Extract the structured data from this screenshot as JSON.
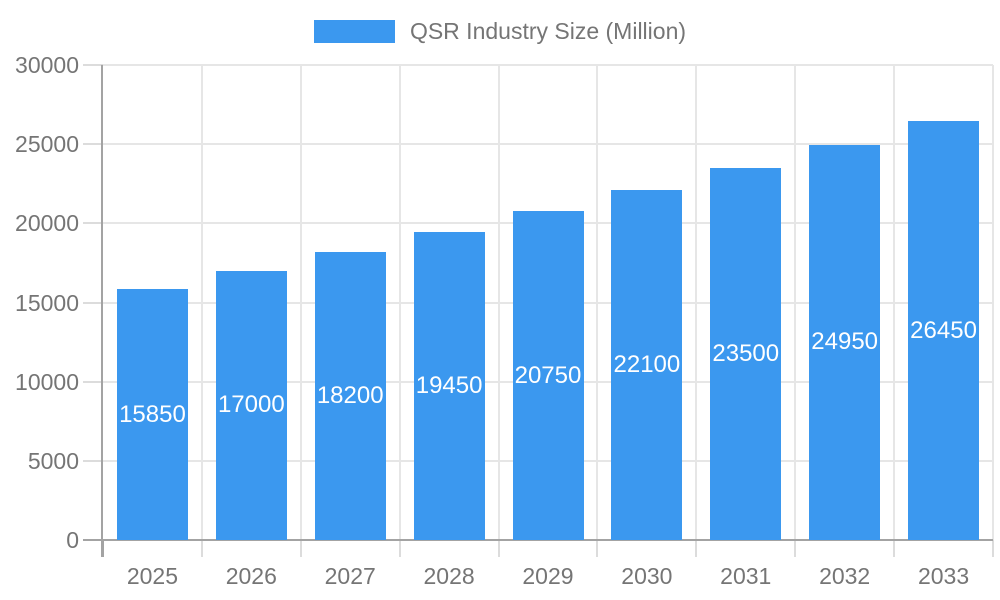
{
  "legend": {
    "label": "QSR Industry Size (Million)",
    "swatch_color": "#3b98ef"
  },
  "colors": {
    "bar": "#3b98ef",
    "bar_label": "#ffffff",
    "axis_text": "#757575",
    "axis_line": "#a3a3a3",
    "grid_line": "#e6e6e6",
    "tick_line": "#dcdcdc",
    "background": "#ffffff"
  },
  "chart_data": {
    "type": "bar",
    "title": "QSR Industry Size (Million)",
    "categories": [
      "2025",
      "2026",
      "2027",
      "2028",
      "2029",
      "2030",
      "2031",
      "2032",
      "2033"
    ],
    "series": [
      {
        "name": "QSR Industry Size (Million)",
        "values": [
          15850,
          17000,
          18200,
          19450,
          20750,
          22100,
          23500,
          24950,
          26450
        ]
      }
    ],
    "xlabel": "",
    "ylabel": "",
    "ylim": [
      0,
      30000
    ],
    "ytick_step": 5000,
    "ytick_labels": [
      "0",
      "5000",
      "10000",
      "15000",
      "20000",
      "25000",
      "30000"
    ],
    "grid": "both",
    "legend_position": "top",
    "value_label_position": "inside-center"
  }
}
